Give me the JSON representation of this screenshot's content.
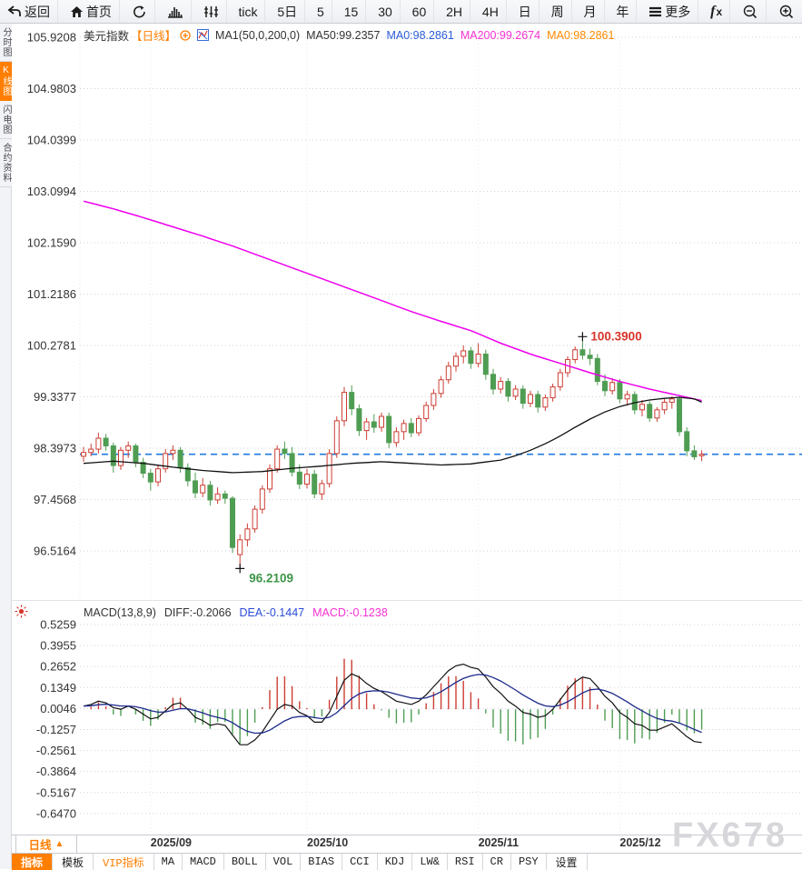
{
  "colors": {
    "accent_orange": "#ff7e00",
    "up_red": "#cc3e34",
    "down_green": "#4f9d53",
    "ma200_magenta": "#ee00ee",
    "ma50_black": "#111111",
    "dea_blue": "#1b2a8a",
    "price_line_blue": "#1f7ae0",
    "header_blue": "#2b5cd9",
    "header_magenta": "#f531d2",
    "header_orange": "#ff8a00",
    "grid_gray": "#cfd2da",
    "watermark_gray": "#d7d7db"
  },
  "top_toolbar": {
    "items": [
      {
        "icon": "back-icon",
        "label": "返回"
      },
      {
        "icon": "home-icon",
        "label": "首页"
      },
      {
        "icon": "refresh-icon",
        "label": ""
      },
      {
        "icon": "bar-chart-icon",
        "label": ""
      },
      {
        "icon": "candle-chart-icon",
        "label": ""
      },
      {
        "icon": "",
        "label": "tick"
      },
      {
        "icon": "",
        "label": "5日"
      },
      {
        "icon": "",
        "label": "5"
      },
      {
        "icon": "",
        "label": "15"
      },
      {
        "icon": "",
        "label": "30"
      },
      {
        "icon": "",
        "label": "60"
      },
      {
        "icon": "",
        "label": "2H"
      },
      {
        "icon": "",
        "label": "4H"
      },
      {
        "icon": "",
        "label": "日"
      },
      {
        "icon": "",
        "label": "周"
      },
      {
        "icon": "",
        "label": "月"
      },
      {
        "icon": "",
        "label": "年"
      },
      {
        "icon": "menu-icon",
        "label": "更多"
      },
      {
        "icon": "fx-icon",
        "label": ""
      },
      {
        "icon": "zoom-out-icon",
        "label": ""
      },
      {
        "icon": "zoom-in-icon",
        "label": ""
      }
    ]
  },
  "sidebar": {
    "tabs": [
      {
        "label": "分时图",
        "active": false
      },
      {
        "label": "K线图",
        "active": true
      },
      {
        "label": "闪电图",
        "active": false
      },
      {
        "label": "合约资料",
        "active": false
      }
    ]
  },
  "chart_header": {
    "symbol": "美元指数",
    "period_tag": "【日线】",
    "ma_settings": "MA1(50,0,200,0)",
    "ma50": "MA50:99.2357",
    "ma0_blue": "MA0:98.2861",
    "ma200": "MA200:99.2674",
    "ma0_orange": "MA0:98.2861"
  },
  "macd_header": {
    "title": "MACD(13,8,9)",
    "diff": "DIFF:-0.2066",
    "dea": "DEA:-0.1447",
    "macd": "MACD:-0.1238"
  },
  "axis_strip": {
    "period_label": "日线",
    "period_arrow": "▲"
  },
  "bottom_toolbar": {
    "items": [
      {
        "label": "指标",
        "kind": "active"
      },
      {
        "label": "模板",
        "kind": "tab"
      },
      {
        "label": "VIP指标",
        "kind": "vip"
      },
      {
        "label": "MA",
        "kind": "ind"
      },
      {
        "label": "MACD",
        "kind": "ind"
      },
      {
        "label": "BOLL",
        "kind": "ind"
      },
      {
        "label": "VOL",
        "kind": "ind"
      },
      {
        "label": "BIAS",
        "kind": "ind"
      },
      {
        "label": "CCI",
        "kind": "ind"
      },
      {
        "label": "KDJ",
        "kind": "ind"
      },
      {
        "label": "LW&",
        "kind": "ind"
      },
      {
        "label": "RSI",
        "kind": "ind"
      },
      {
        "label": "CR",
        "kind": "ind"
      },
      {
        "label": "PSY",
        "kind": "ind"
      },
      {
        "label": "设置",
        "kind": "tab"
      }
    ]
  },
  "watermark": "FX678",
  "chart_data": {
    "type": "candlestick",
    "title": "美元指数 日线",
    "price_ticks": [
      "105.9208",
      "104.9803",
      "104.0399",
      "103.0994",
      "102.1590",
      "101.2186",
      "100.2781",
      "99.3377",
      "98.3973",
      "97.4568",
      "96.5164"
    ],
    "macd_ticks": [
      "0.5259",
      "0.3955",
      "0.2652",
      "0.1349",
      "0.0046",
      "-0.1257",
      "-0.2561",
      "-0.3864",
      "-0.5167",
      "-0.6470"
    ],
    "month_ticks": [
      {
        "label": "2025/09",
        "index": 9
      },
      {
        "label": "2025/10",
        "index": 30
      },
      {
        "label": "2025/11",
        "index": 53
      },
      {
        "label": "2025/12",
        "index": 72
      }
    ],
    "price_line": 98.2861,
    "high_point": {
      "index": 67,
      "value": 100.39,
      "label": "100.3900"
    },
    "low_point": {
      "index": 21,
      "value": 96.2109,
      "label": "96.2109"
    },
    "candles": [
      [
        98.25,
        98.42,
        98.15,
        98.32
      ],
      [
        98.32,
        98.48,
        98.25,
        98.38
      ],
      [
        98.38,
        98.68,
        98.3,
        98.58
      ],
      [
        98.58,
        98.66,
        98.35,
        98.44
      ],
      [
        98.44,
        98.5,
        97.95,
        98.08
      ],
      [
        98.08,
        98.42,
        98.0,
        98.36
      ],
      [
        98.36,
        98.52,
        98.22,
        98.44
      ],
      [
        98.44,
        98.48,
        98.05,
        98.14
      ],
      [
        98.14,
        98.22,
        97.85,
        97.94
      ],
      [
        97.94,
        98.02,
        97.62,
        97.78
      ],
      [
        97.78,
        98.1,
        97.7,
        98.02
      ],
      [
        98.02,
        98.38,
        97.95,
        98.3
      ],
      [
        98.3,
        98.45,
        98.18,
        98.36
      ],
      [
        98.36,
        98.42,
        97.95,
        98.04
      ],
      [
        98.04,
        98.12,
        97.7,
        97.8
      ],
      [
        97.8,
        97.95,
        97.48,
        97.58
      ],
      [
        97.58,
        97.85,
        97.5,
        97.72
      ],
      [
        97.72,
        97.8,
        97.35,
        97.45
      ],
      [
        97.45,
        97.68,
        97.38,
        97.56
      ],
      [
        97.56,
        97.62,
        97.38,
        97.48
      ],
      [
        97.48,
        97.52,
        96.48,
        96.58
      ],
      [
        96.45,
        96.82,
        96.2109,
        96.72
      ],
      [
        96.72,
        97.02,
        96.6,
        96.92
      ],
      [
        96.92,
        97.35,
        96.85,
        97.28
      ],
      [
        97.28,
        97.72,
        97.2,
        97.65
      ],
      [
        97.65,
        98.1,
        97.58,
        98.02
      ],
      [
        98.02,
        98.45,
        97.95,
        98.38
      ],
      [
        98.38,
        98.52,
        98.2,
        98.3
      ],
      [
        98.3,
        98.42,
        97.88,
        97.96
      ],
      [
        97.96,
        98.1,
        97.65,
        97.74
      ],
      [
        97.74,
        98.02,
        97.66,
        97.92
      ],
      [
        97.92,
        98.0,
        97.48,
        97.56
      ],
      [
        97.56,
        97.82,
        97.45,
        97.75
      ],
      [
        97.75,
        98.38,
        97.68,
        98.3
      ],
      [
        98.3,
        98.98,
        98.22,
        98.9
      ],
      [
        98.9,
        99.52,
        98.8,
        99.42
      ],
      [
        99.42,
        99.55,
        99.0,
        99.12
      ],
      [
        99.12,
        99.2,
        98.62,
        98.72
      ],
      [
        98.72,
        98.95,
        98.55,
        98.88
      ],
      [
        98.88,
        99.02,
        98.68,
        98.78
      ],
      [
        98.78,
        99.05,
        98.7,
        98.98
      ],
      [
        98.98,
        99.05,
        98.4,
        98.5
      ],
      [
        98.5,
        98.78,
        98.42,
        98.7
      ],
      [
        98.7,
        98.92,
        98.55,
        98.85
      ],
      [
        98.85,
        98.95,
        98.6,
        98.68
      ],
      [
        98.68,
        99.0,
        98.62,
        98.94
      ],
      [
        98.94,
        99.25,
        98.88,
        99.18
      ],
      [
        99.18,
        99.48,
        99.1,
        99.4
      ],
      [
        99.4,
        99.72,
        99.32,
        99.65
      ],
      [
        99.65,
        99.98,
        99.58,
        99.9
      ],
      [
        99.9,
        100.15,
        99.8,
        100.08
      ],
      [
        100.08,
        100.28,
        99.95,
        100.18
      ],
      [
        100.18,
        100.25,
        99.85,
        99.95
      ],
      [
        99.95,
        100.32,
        99.88,
        100.12
      ],
      [
        100.12,
        100.2,
        99.65,
        99.75
      ],
      [
        99.75,
        99.85,
        99.38,
        99.48
      ],
      [
        99.48,
        99.7,
        99.4,
        99.62
      ],
      [
        99.62,
        99.68,
        99.25,
        99.35
      ],
      [
        99.35,
        99.55,
        99.28,
        99.48
      ],
      [
        99.48,
        99.55,
        99.12,
        99.22
      ],
      [
        99.22,
        99.45,
        99.15,
        99.38
      ],
      [
        99.38,
        99.45,
        99.05,
        99.15
      ],
      [
        99.15,
        99.38,
        99.08,
        99.32
      ],
      [
        99.32,
        99.58,
        99.25,
        99.52
      ],
      [
        99.52,
        99.85,
        99.45,
        99.78
      ],
      [
        99.78,
        100.08,
        99.7,
        100.02
      ],
      [
        100.02,
        100.26,
        99.95,
        100.2
      ],
      [
        100.2,
        100.39,
        100.02,
        100.1
      ],
      [
        100.1,
        100.22,
        99.92,
        100.04
      ],
      [
        100.04,
        100.12,
        99.55,
        99.62
      ],
      [
        99.62,
        99.75,
        99.35,
        99.45
      ],
      [
        99.45,
        99.68,
        99.38,
        99.6
      ],
      [
        99.6,
        99.66,
        99.22,
        99.3
      ],
      [
        99.3,
        99.45,
        99.18,
        99.38
      ],
      [
        99.38,
        99.44,
        99.02,
        99.1
      ],
      [
        99.1,
        99.28,
        98.98,
        99.2
      ],
      [
        99.2,
        99.26,
        98.88,
        98.95
      ],
      [
        98.95,
        99.15,
        98.88,
        99.1
      ],
      [
        99.1,
        99.3,
        99.02,
        99.24
      ],
      [
        99.24,
        99.35,
        99.12,
        99.3
      ],
      [
        99.3,
        99.34,
        98.62,
        98.7
      ],
      [
        98.7,
        98.78,
        98.25,
        98.35
      ],
      [
        98.35,
        98.45,
        98.18,
        98.24
      ],
      [
        98.26,
        98.36,
        98.16,
        98.2861
      ]
    ],
    "ma50_points": [
      [
        0,
        98.12
      ],
      [
        4,
        98.16
      ],
      [
        8,
        98.12
      ],
      [
        12,
        98.05
      ],
      [
        16,
        97.99
      ],
      [
        20,
        97.95
      ],
      [
        24,
        97.97
      ],
      [
        28,
        98.03
      ],
      [
        32,
        98.07
      ],
      [
        36,
        98.12
      ],
      [
        40,
        98.15
      ],
      [
        44,
        98.12
      ],
      [
        48,
        98.09
      ],
      [
        52,
        98.11
      ],
      [
        56,
        98.18
      ],
      [
        58,
        98.26
      ],
      [
        60,
        98.36
      ],
      [
        62,
        98.48
      ],
      [
        64,
        98.62
      ],
      [
        66,
        98.78
      ],
      [
        68,
        98.93
      ],
      [
        70,
        99.06
      ],
      [
        72,
        99.16
      ],
      [
        74,
        99.23
      ],
      [
        76,
        99.28
      ],
      [
        78,
        99.31
      ],
      [
        80,
        99.33
      ],
      [
        82,
        99.3
      ],
      [
        83,
        99.24
      ]
    ],
    "ma200_points": [
      [
        0,
        102.92
      ],
      [
        4,
        102.78
      ],
      [
        8,
        102.62
      ],
      [
        12,
        102.45
      ],
      [
        16,
        102.28
      ],
      [
        20,
        102.1
      ],
      [
        24,
        101.9
      ],
      [
        28,
        101.7
      ],
      [
        32,
        101.5
      ],
      [
        36,
        101.3
      ],
      [
        40,
        101.1
      ],
      [
        44,
        100.9
      ],
      [
        48,
        100.72
      ],
      [
        52,
        100.55
      ],
      [
        56,
        100.32
      ],
      [
        60,
        100.12
      ],
      [
        64,
        99.95
      ],
      [
        68,
        99.78
      ],
      [
        72,
        99.62
      ],
      [
        76,
        99.48
      ],
      [
        80,
        99.36
      ],
      [
        83,
        99.27
      ]
    ],
    "macd": {
      "diff": [
        0.02,
        0.03,
        0.05,
        0.04,
        0.01,
        0.0,
        0.02,
        0.0,
        -0.03,
        -0.06,
        -0.05,
        -0.01,
        0.03,
        0.04,
        0.0,
        -0.05,
        -0.07,
        -0.1,
        -0.09,
        -0.1,
        -0.16,
        -0.22,
        -0.22,
        -0.19,
        -0.14,
        -0.07,
        0.0,
        0.03,
        0.02,
        -0.02,
        -0.04,
        -0.08,
        -0.08,
        -0.02,
        0.08,
        0.18,
        0.22,
        0.2,
        0.16,
        0.13,
        0.11,
        0.08,
        0.05,
        0.04,
        0.03,
        0.05,
        0.09,
        0.14,
        0.19,
        0.24,
        0.27,
        0.28,
        0.26,
        0.25,
        0.2,
        0.14,
        0.1,
        0.05,
        0.02,
        -0.02,
        -0.03,
        -0.05,
        -0.04,
        0.0,
        0.06,
        0.12,
        0.17,
        0.2,
        0.19,
        0.14,
        0.08,
        0.04,
        -0.02,
        -0.05,
        -0.09,
        -0.1,
        -0.13,
        -0.13,
        -0.11,
        -0.09,
        -0.13,
        -0.17,
        -0.2,
        -0.2066
      ],
      "dea_alpha": 0.22,
      "hist_scale": 2,
      "last_diff": -0.2066,
      "last_dea": -0.1447,
      "last_macd": -0.1238
    }
  }
}
